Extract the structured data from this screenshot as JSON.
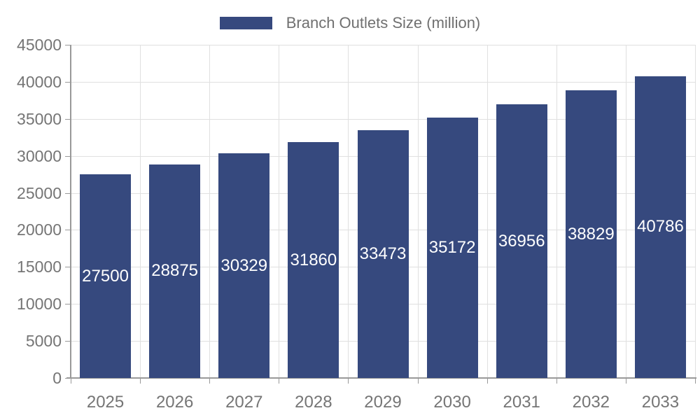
{
  "legend": {
    "label": "Branch Outlets Size (million)",
    "position": "top"
  },
  "colors": {
    "bar": "#36497E",
    "bar_label": "#FFFFFF",
    "axis_line": "#999999",
    "grid_line": "#E0E0E0",
    "tick_label": "#757575",
    "legend_text": "#707070",
    "background": "#FFFFFF"
  },
  "chart_data": {
    "type": "bar",
    "title": "",
    "xlabel": "",
    "ylabel": "",
    "categories": [
      "2025",
      "2026",
      "2027",
      "2028",
      "2029",
      "2030",
      "2031",
      "2032",
      "2033"
    ],
    "series": [
      {
        "name": "Branch Outlets Size (million)",
        "values": [
          27500,
          28875,
          30329,
          31860,
          33473,
          35172,
          36956,
          38829,
          40786
        ]
      }
    ],
    "value_labels": [
      "27500",
      "28875",
      "30329",
      "31860",
      "33473",
      "35172",
      "36956",
      "38829",
      "40786"
    ],
    "value_label_position": "inside-center",
    "ylim": [
      0,
      45000
    ],
    "ytick_interval": 5000,
    "ytick_labels": [
      "0",
      "5000",
      "10000",
      "15000",
      "20000",
      "25000",
      "30000",
      "35000",
      "40000",
      "45000"
    ],
    "grid": true,
    "legend_position": "top"
  }
}
